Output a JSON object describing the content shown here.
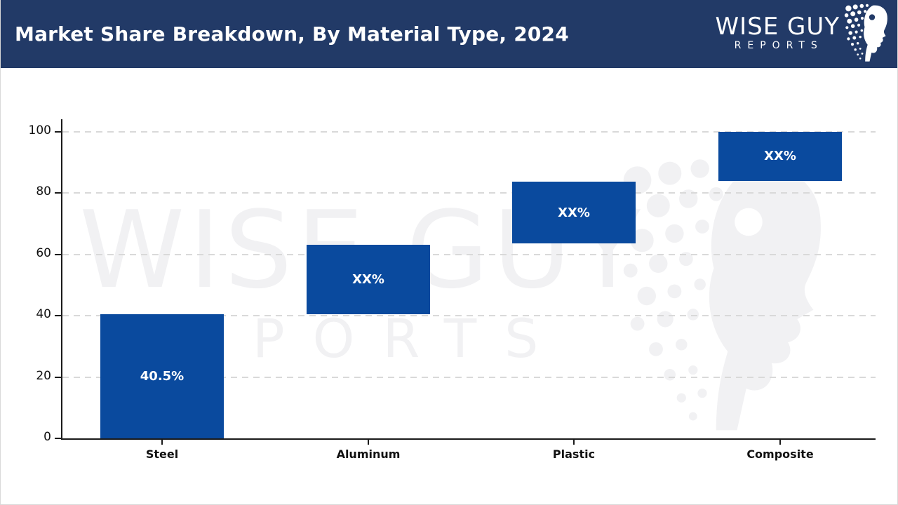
{
  "header": {
    "title": "Market Share Breakdown, By Material Type, 2024",
    "bg_color": "#223a67",
    "logo_line1": "WISE GUY",
    "logo_line2": "REPORTS"
  },
  "watermark": {
    "line1": "WISE GUY",
    "line2": "REPORTS"
  },
  "chart_data": {
    "type": "bar",
    "variant": "floating-waterfall",
    "title": "Market Share Breakdown, By Material Type, 2024",
    "categories": [
      "Steel",
      "Aluminum",
      "Plastic",
      "Composite"
    ],
    "segments": [
      {
        "category": "Steel",
        "start": 0,
        "end": 40.5,
        "label": "40.5%"
      },
      {
        "category": "Aluminum",
        "start": 40.5,
        "end": 63.2,
        "label": "XX%"
      },
      {
        "category": "Plastic",
        "start": 63.5,
        "end": 83.6,
        "label": "XX%"
      },
      {
        "category": "Composite",
        "start": 83.8,
        "end": 100,
        "label": "XX%"
      }
    ],
    "yticks": [
      0,
      20,
      40,
      60,
      80,
      100
    ],
    "ylim": [
      0,
      104
    ],
    "xlabel": "",
    "ylabel": "",
    "grid": "horizontal-dashed",
    "legend": "none",
    "bar_color": "#0a4a9e",
    "bar_label_color": "#ffffff",
    "axis_color": "#1a1a1a",
    "grid_color": "#d9d9d9",
    "tick_label_color": "#111111"
  }
}
